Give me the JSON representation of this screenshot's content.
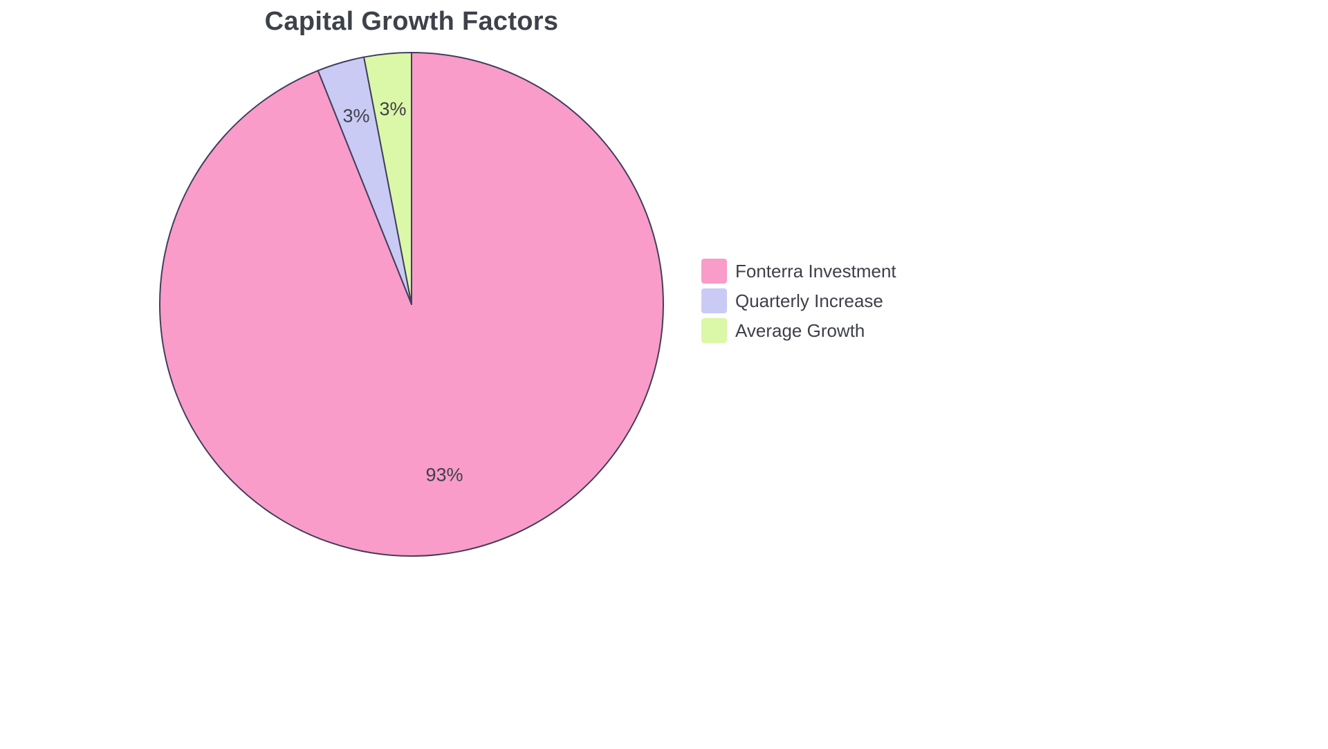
{
  "page": {
    "background_color": "#FFFFFF"
  },
  "chart_data": {
    "type": "pie",
    "title": "Capital Growth Factors",
    "title_color": "#3D4149",
    "labels": [
      "Fonterra Investment",
      "Quarterly Increase",
      "Average Growth"
    ],
    "values": [
      93,
      3,
      3
    ],
    "value_labels": [
      "93%",
      "3%",
      "3%"
    ],
    "colors": [
      "#F99CC9",
      "#C9CBF5",
      "#DBF7A8"
    ],
    "outline_color": "#413E5C",
    "percent_label_color": "#3F4048",
    "legend_position": "right",
    "legend_text_color": "#3E4049",
    "start_angle_deg": 0,
    "direction": "clockwise"
  }
}
